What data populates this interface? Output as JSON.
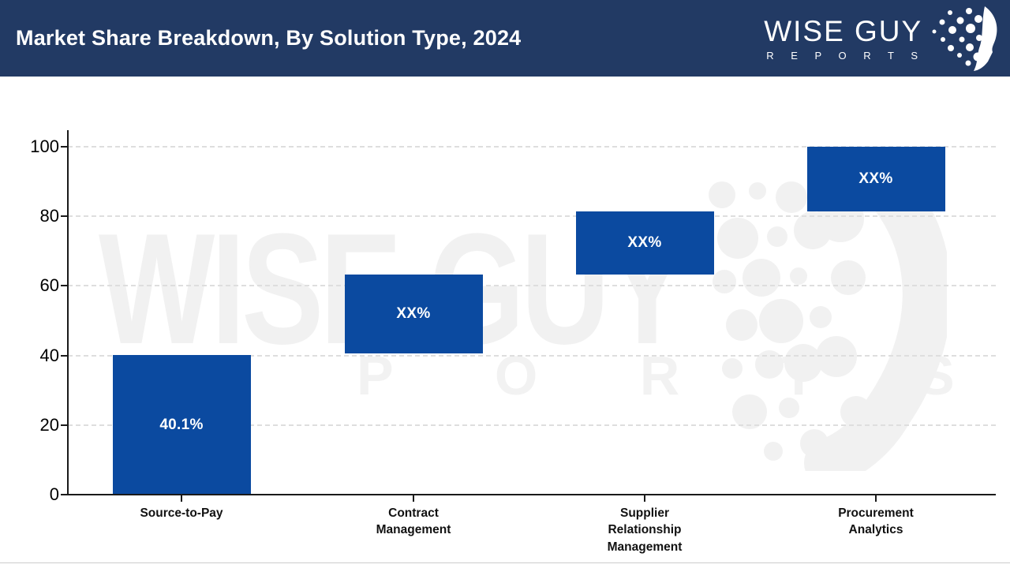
{
  "header": {
    "title": "Market Share Breakdown, By Solution Type, 2024",
    "bg_color": "#223a64",
    "logo": {
      "wordmark": "WISE GUY",
      "subtext": "R E P O R T S"
    }
  },
  "watermark": {
    "wordmark": "WISE GUY",
    "subtext": "P O R T S"
  },
  "chart_data": {
    "type": "bar",
    "variant": "floating-segment-waterfall",
    "title": "Market Share Breakdown, By Solution Type, 2024",
    "categories": [
      "Source-to-Pay",
      "Contract Management",
      "Supplier Relationship Management",
      "Procurement Analytics"
    ],
    "segments": [
      {
        "category": "Source-to-Pay",
        "start": 0,
        "end": 40.1,
        "label": "40.1%"
      },
      {
        "category": "Contract Management",
        "start": 40.5,
        "end": 63.2,
        "label": "XX%"
      },
      {
        "category": "Supplier Relationship Management",
        "start": 63.2,
        "end": 81.5,
        "label": "XX%"
      },
      {
        "category": "Procurement Analytics",
        "start": 81.5,
        "end": 100,
        "label": "XX%"
      }
    ],
    "y_ticks": [
      0,
      20,
      40,
      60,
      80,
      100
    ],
    "ylim": [
      0,
      105
    ],
    "xlabel": "",
    "ylabel": "",
    "grid": "horizontal-dashed",
    "legend": "none",
    "bar_color": "#0b4aa0",
    "bar_label_color": "#ffffff",
    "axis_color": "#1a1a1a",
    "gridline_color": "#dedede"
  }
}
